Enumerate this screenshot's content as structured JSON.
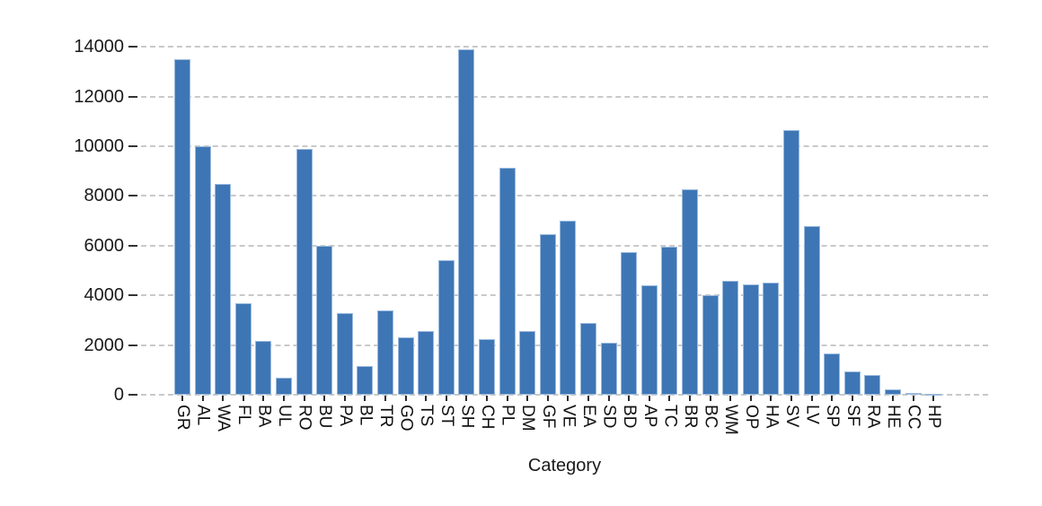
{
  "chart_data": {
    "type": "bar",
    "title": "",
    "xlabel": "Category",
    "ylabel": "",
    "categories": [
      "GR",
      "AL",
      "WA",
      "FL",
      "BA",
      "UL",
      "RO",
      "BU",
      "PA",
      "BL",
      "TR",
      "GO",
      "TS",
      "ST",
      "SH",
      "CH",
      "PL",
      "DM",
      "GF",
      "VE",
      "EA",
      "SD",
      "BD",
      "AP",
      "TC",
      "BR",
      "BC",
      "WM",
      "OP",
      "HA",
      "SV",
      "LV",
      "SP",
      "SF",
      "RA",
      "HE",
      "CC",
      "HP"
    ],
    "values": [
      13500,
      10000,
      8500,
      3700,
      2150,
      680,
      9900,
      6000,
      3300,
      1150,
      3400,
      2300,
      2550,
      5400,
      13900,
      2250,
      9150,
      2550,
      6450,
      7000,
      2900,
      2100,
      5750,
      4400,
      5950,
      8250,
      4000,
      4600,
      4450,
      4500,
      10650,
      6800,
      1650,
      950,
      780,
      200,
      70,
      30
    ],
    "yticks": [
      0,
      2000,
      4000,
      6000,
      8000,
      10000,
      12000,
      14000
    ],
    "ylim": [
      0,
      14600
    ],
    "grid": "horizontal-dashed",
    "legend": "none",
    "bar_color": "#3e76b5",
    "bar_edge_color": "#9bbade",
    "gridline_color": "#c9c9c9",
    "tick_color": "#333333",
    "text_color": "#1a1a1a"
  }
}
